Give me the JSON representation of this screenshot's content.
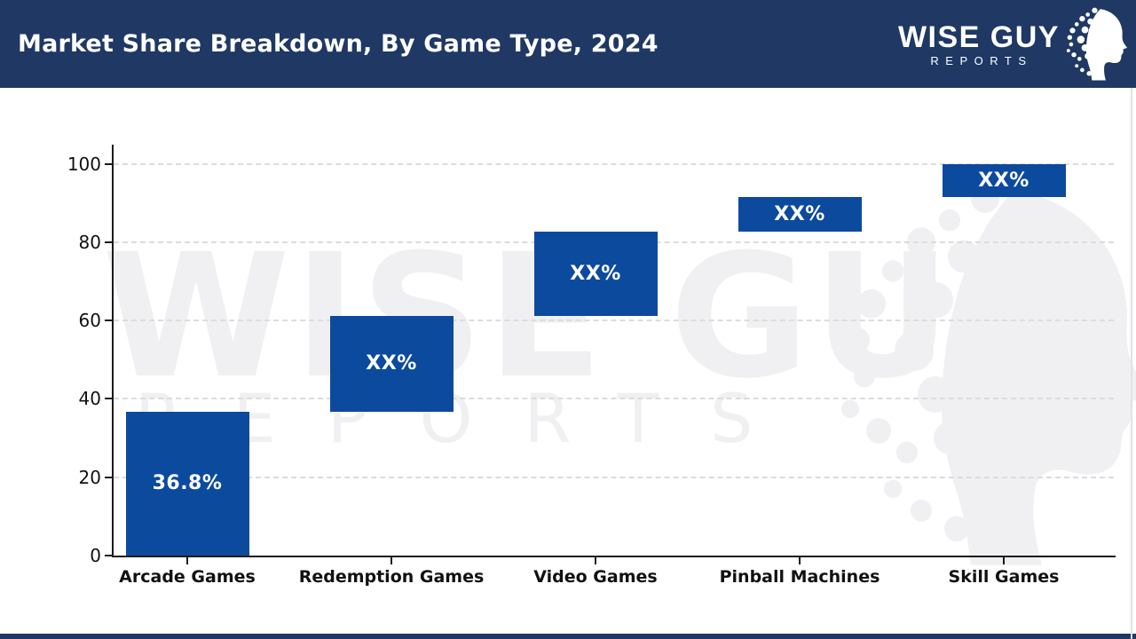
{
  "theme": {
    "navy": "#1f3864",
    "bar_blue": "#0c4a9e",
    "grid_gray": "#dcdcdc",
    "axis_black": "#1a1a1a",
    "watermark_gray": "#f0f0f2",
    "label_white": "#ffffff"
  },
  "header": {
    "title": "Market Share Breakdown, By Game Type, 2024",
    "logo": {
      "name": "WISE GUY",
      "tagline": "REPORTS",
      "icon": "dotted-head-icon"
    }
  },
  "watermark": {
    "line1": "WISE GUY",
    "line2": "REPORTS"
  },
  "chart_data": {
    "type": "bar",
    "subtype": "waterfall",
    "title": "Market Share Breakdown, By Game Type, 2024",
    "categories": [
      "Arcade Games",
      "Redemption Games",
      "Video Games",
      "Pinball Machines",
      "Skill Games"
    ],
    "segments": [
      {
        "category": "Arcade Games",
        "start": 0,
        "end": 36.8,
        "value": 36.8,
        "label": "36.8%"
      },
      {
        "category": "Redemption Games",
        "start": 36.8,
        "end": 61.2,
        "value": 24.4,
        "label": "XX%"
      },
      {
        "category": "Video Games",
        "start": 61.2,
        "end": 82.6,
        "value": 21.4,
        "label": "XX%"
      },
      {
        "category": "Pinball Machines",
        "start": 82.6,
        "end": 91.6,
        "value": 9.0,
        "label": "XX%"
      },
      {
        "category": "Skill Games",
        "start": 91.6,
        "end": 100,
        "value": 8.4,
        "label": "XX%"
      }
    ],
    "yticks": [
      0,
      20,
      40,
      60,
      80,
      100
    ],
    "ylim": [
      0,
      104.5
    ],
    "xlabel": "",
    "ylabel": "",
    "grid": "horizontal-dashed",
    "legend": "none",
    "bar_color": "#0c4a9e",
    "bar_label_color": "#ffffff"
  }
}
